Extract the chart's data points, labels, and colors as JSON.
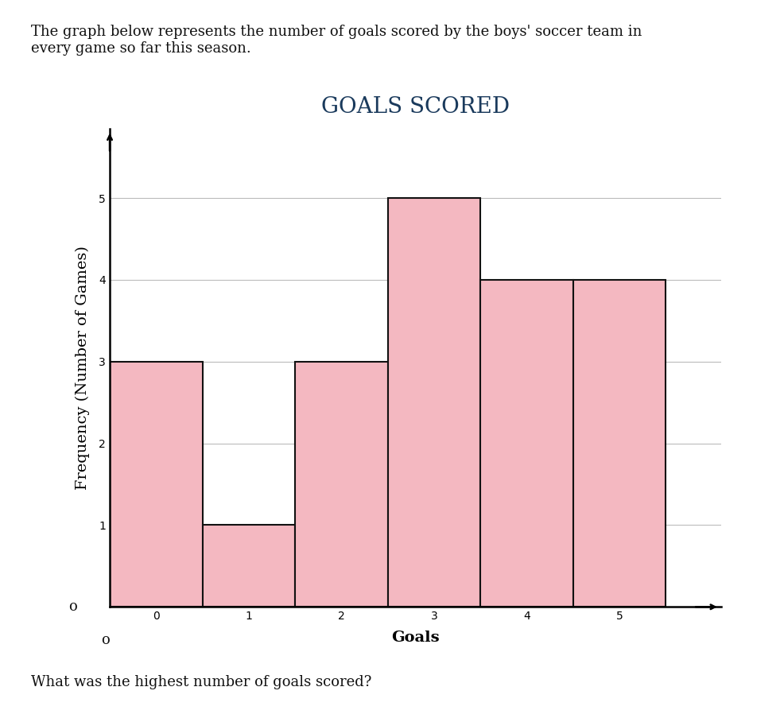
{
  "title": "GOALS SCORED",
  "xlabel": "Goals",
  "ylabel": "Frequency (Number of Games)",
  "bar_left_edges": [
    0,
    1,
    2,
    3,
    4,
    5
  ],
  "bar_values": [
    3,
    1,
    3,
    5,
    4,
    4
  ],
  "bar_color": "#f4b8c1",
  "bar_edgecolor": "#111111",
  "bar_width": 1.0,
  "xlim": [
    0,
    6.6
  ],
  "ylim": [
    0,
    5.85
  ],
  "yticks": [
    1,
    2,
    3,
    4,
    5
  ],
  "xtick_positions": [
    0.5,
    1.5,
    2.5,
    3.5,
    4.5,
    5.5
  ],
  "xtick_labels": [
    "0",
    "1",
    "2",
    "3",
    "4",
    "5"
  ],
  "grid_color": "#bbbbbb",
  "grid_linewidth": 0.8,
  "title_fontsize": 20,
  "axis_label_fontsize": 14,
  "tick_fontsize": 13,
  "text_top": "The graph below represents the number of goals scored by the boys' soccer team in\nevery game so far this season.",
  "text_bottom": "What was the highest number of goals scored?",
  "background_color": "#ffffff",
  "title_color": "#1a3a5c",
  "text_color": "#111111",
  "spine_linewidth": 1.8
}
